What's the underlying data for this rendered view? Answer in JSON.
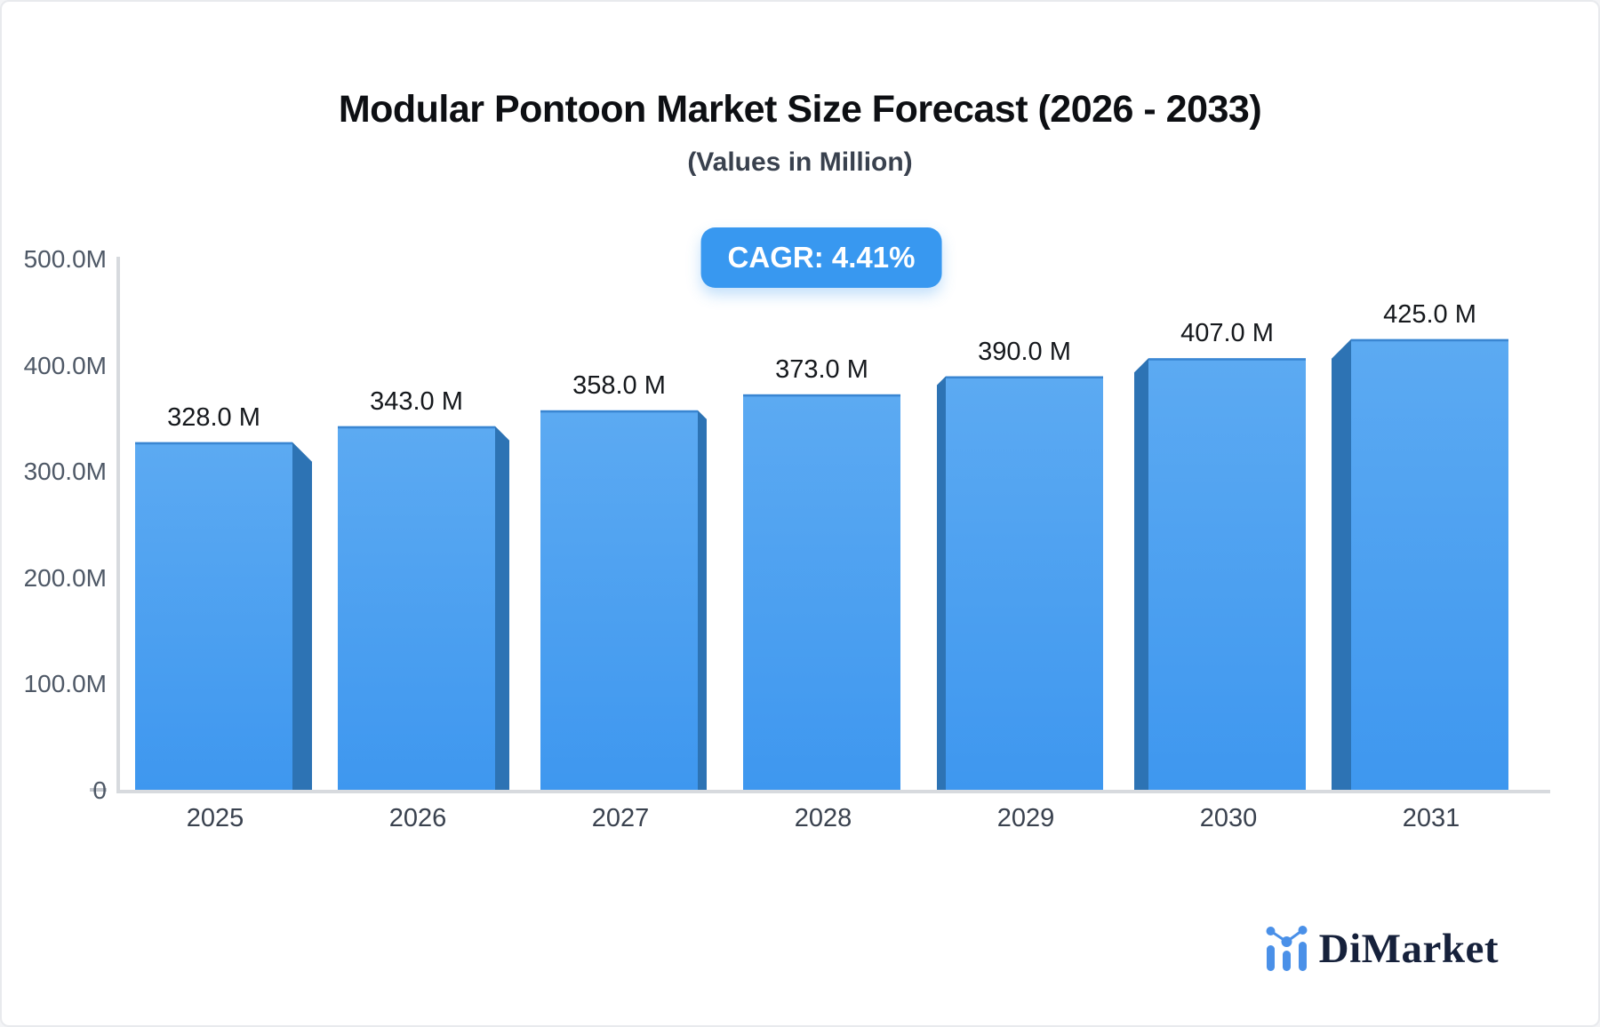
{
  "header": {
    "title": "Modular Pontoon Market Size Forecast (2026 - 2033)",
    "subtitle": "(Values in Million)"
  },
  "badge": {
    "label": "CAGR: 4.41%"
  },
  "logo": {
    "text": "DiMarket",
    "icon": "bar-line-chart-icon",
    "icon_color": "#4a90e8",
    "text_color": "#16213b"
  },
  "chart_data": {
    "type": "bar",
    "title": "Modular Pontoon Market Size Forecast (2026 - 2033)",
    "subtitle": "(Values in Million)",
    "cagr": "4.41%",
    "unit": "Million",
    "categories": [
      "2025",
      "2026",
      "2027",
      "2028",
      "2029",
      "2030",
      "2031"
    ],
    "values": [
      328,
      343,
      358,
      373,
      390,
      407,
      425
    ],
    "value_labels": [
      "328.0 M",
      "343.0 M",
      "358.0 M",
      "373.0 M",
      "390.0 M",
      "407.0 M",
      "425.0 M"
    ],
    "xlabel": "",
    "ylabel": "",
    "ylim": [
      0,
      500
    ],
    "y_ticks": [
      {
        "value": 500,
        "label": "500.0M"
      },
      {
        "value": 400,
        "label": "400.0M"
      },
      {
        "value": 300,
        "label": "300.0M"
      },
      {
        "value": 200,
        "label": "200.0M"
      },
      {
        "value": 100,
        "label": "100.0M"
      },
      {
        "value": 0,
        "label": "0"
      }
    ],
    "grid": false,
    "legend": false,
    "bar_style": {
      "face_top": "#5caaf2",
      "face_bottom": "#3e97ef",
      "side": "#2d73b4",
      "top_edge": "#3a86d2"
    },
    "axis_color": "#d7dade",
    "tick_color": "#c3c7cd"
  }
}
